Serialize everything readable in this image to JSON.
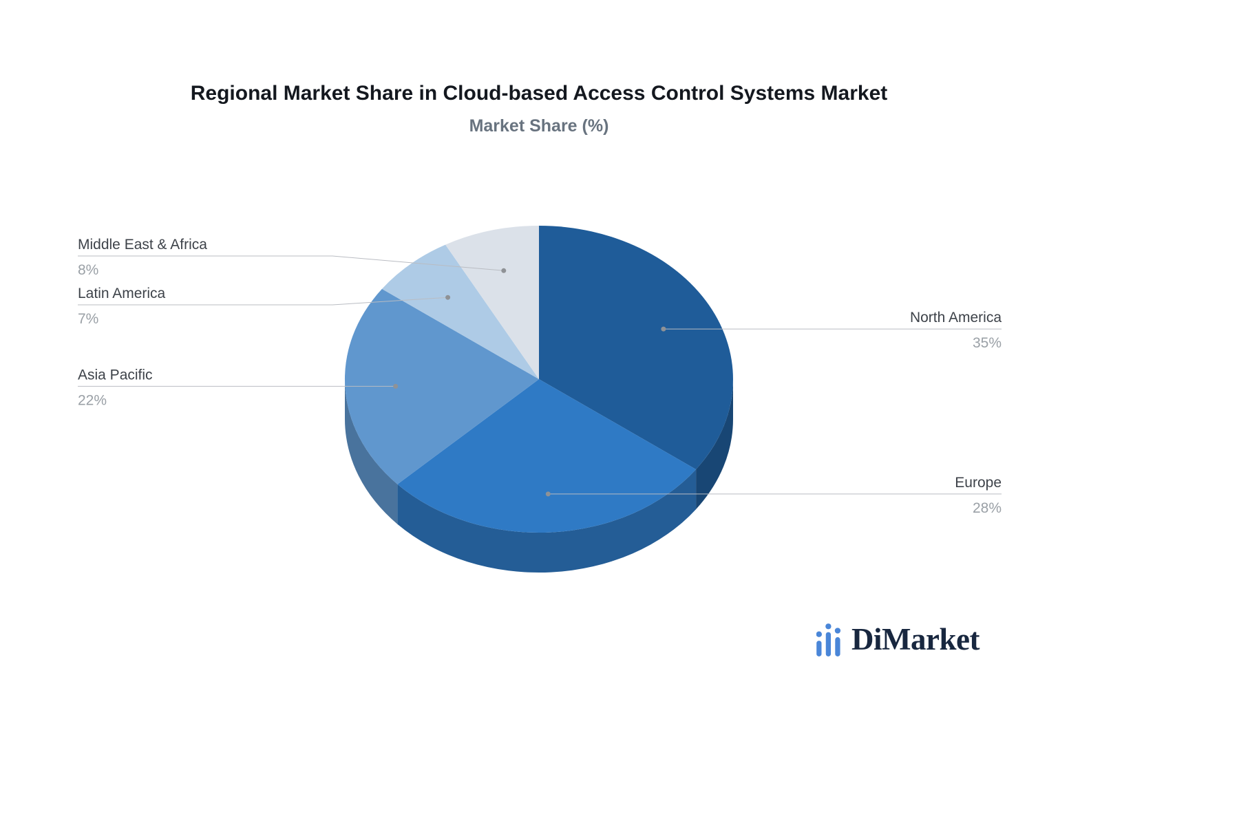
{
  "chart_data": {
    "type": "pie",
    "title": "Regional Market Share in Cloud-based Access Control Systems Market",
    "subtitle": "Market Share (%)",
    "unit": "%",
    "labels": [
      "North America",
      "Europe",
      "Asia Pacific",
      "Latin America",
      "Middle East & Africa"
    ],
    "values": [
      35,
      28,
      22,
      7,
      8
    ],
    "colors": [
      "#1f5c99",
      "#2f7ac5",
      "#6097ce",
      "#aecbe6",
      "#dbe1e9"
    ],
    "style": "3d-pie",
    "legend": "none",
    "label_position": "outside-callout",
    "label_name_color": "#3d4249",
    "label_value_color": "#9aa0a6",
    "leader_line_color": "#b9bcc2"
  },
  "logo": {
    "text": "DiMarket",
    "icon": "bar-chart-icon",
    "icon_color": "#4a86d8",
    "text_color": "#18273f"
  }
}
